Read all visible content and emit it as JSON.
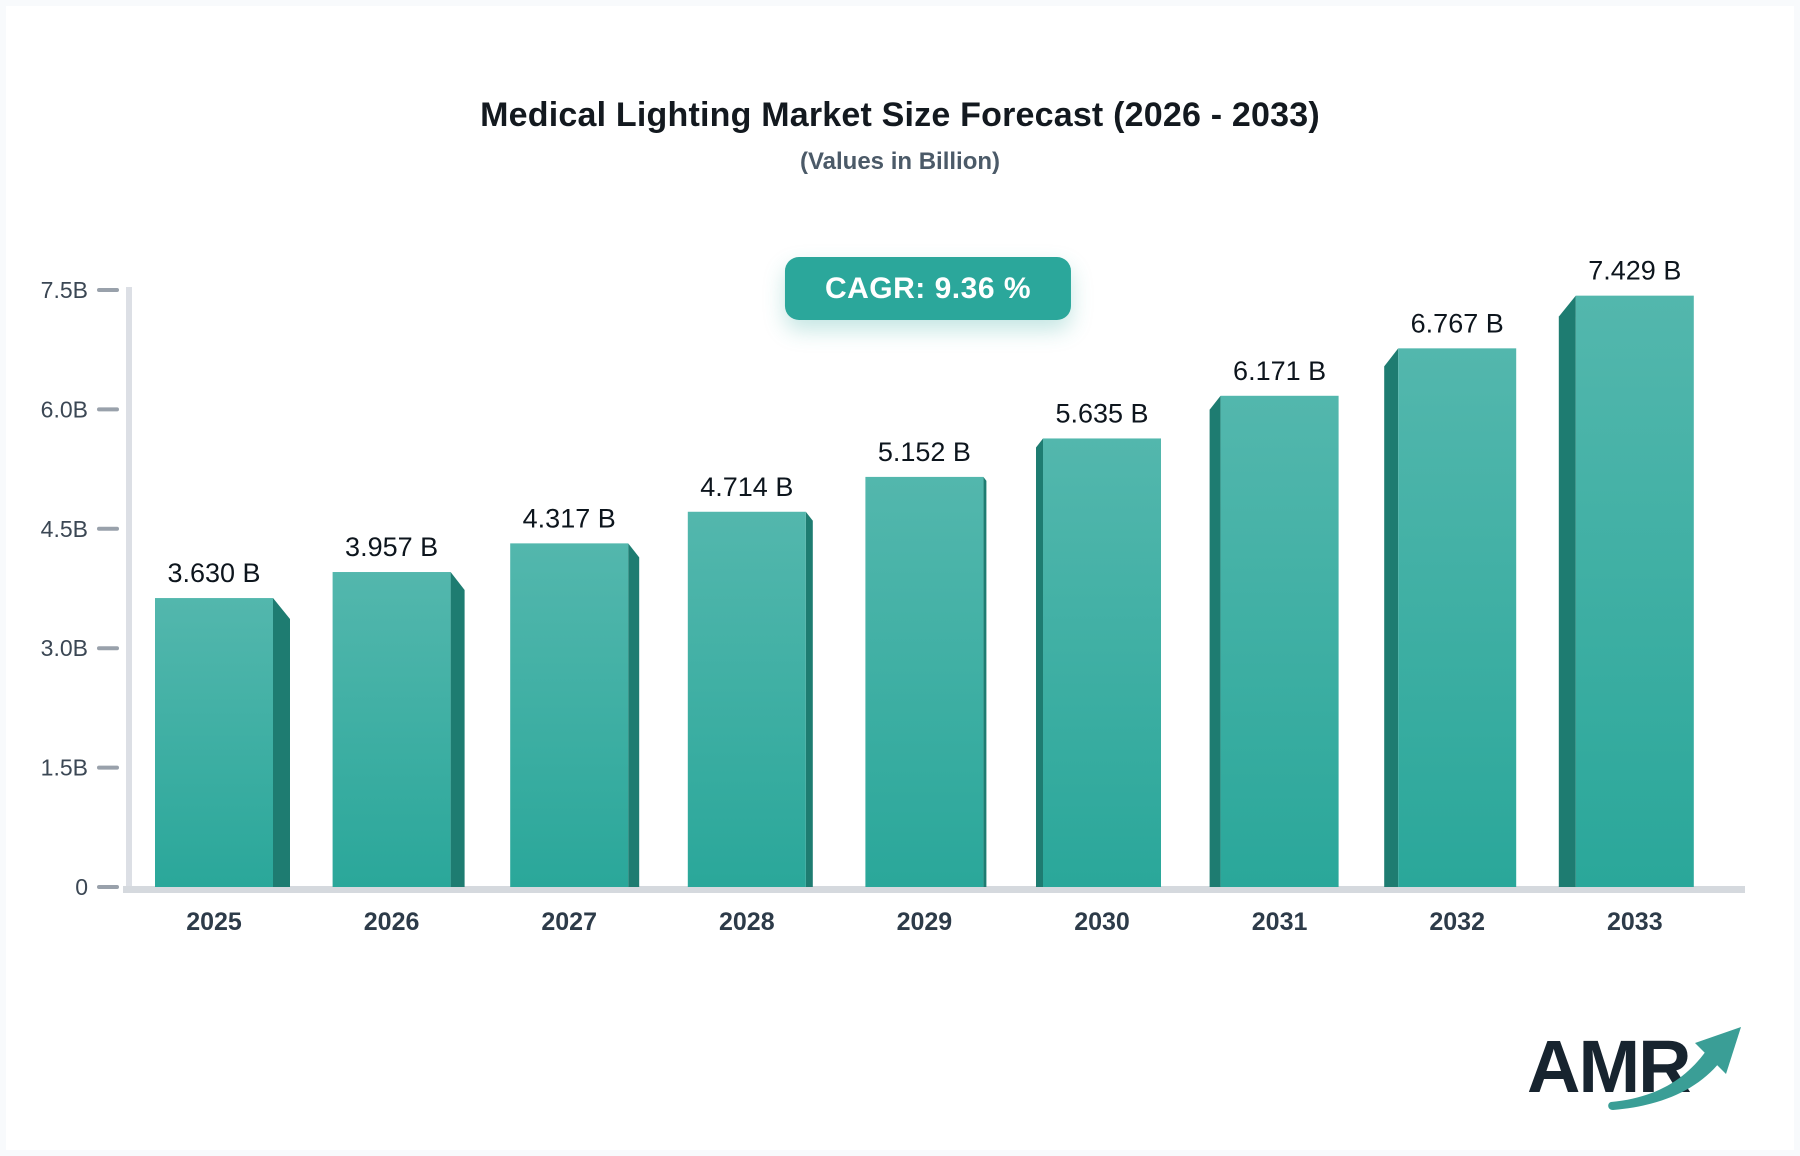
{
  "header": {
    "title": "Medical Lighting Market Size Forecast (2026 - 2033)",
    "subtitle": "(Values in Billion)"
  },
  "badge": {
    "label": "CAGR: 9.36 %",
    "bg_color": "#2ba79b",
    "text_color": "#ffffff"
  },
  "chart_data": {
    "type": "bar",
    "title": "Medical Lighting Market Size Forecast (2026 - 2033)",
    "subtitle": "(Values in Billion)",
    "xlabel": "",
    "ylabel": "",
    "categories": [
      "2025",
      "2026",
      "2027",
      "2028",
      "2029",
      "2030",
      "2031",
      "2032",
      "2033"
    ],
    "values": [
      3.63,
      3.957,
      4.317,
      4.714,
      5.152,
      5.635,
      6.171,
      6.767,
      7.429
    ],
    "value_labels": [
      "3.630 B",
      "3.957 B",
      "4.317 B",
      "4.714 B",
      "5.152 B",
      "5.635 B",
      "6.171 B",
      "6.767 B",
      "7.429 B"
    ],
    "ylim": [
      0,
      7.5
    ],
    "yticks": [
      {
        "value": 7.5,
        "label": "7.5B"
      },
      {
        "value": 6.0,
        "label": "6.0B"
      },
      {
        "value": 4.5,
        "label": "4.5B"
      },
      {
        "value": 3.0,
        "label": "3.0B"
      },
      {
        "value": 1.5,
        "label": "1.5B"
      },
      {
        "value": 0,
        "label": "0"
      }
    ],
    "grid": false,
    "legend": null,
    "style": {
      "bar_face_top_color": "#53b7ad",
      "bar_face_bottom_color": "#2aa79a",
      "bar_side_color": "#1e7c71",
      "axis_line_color": "#dcdfe5",
      "baseline_color": "#d5d9de",
      "tick_mark_color": "#99a1ab",
      "ytick_label_color": "#3b4754",
      "xtick_label_color": "#2d3b49",
      "value_label_color": "#0d151d"
    }
  },
  "logo": {
    "text": "AMR",
    "text_color": "#17242f",
    "arrow_color": "#3a9e96"
  }
}
